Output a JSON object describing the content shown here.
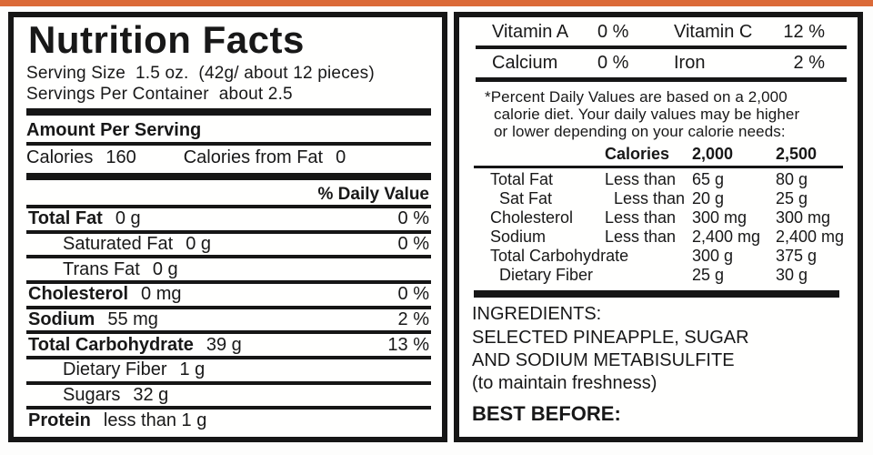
{
  "colors": {
    "accent_orange": "#DB6A38",
    "border_black": "#161616"
  },
  "left": {
    "title": "Nutrition Facts",
    "serving_size": "Serving Size  1.5 oz.  (42g/ about 12 pieces)",
    "servings_per_container": "Servings Per Container  about 2.5",
    "amount_per_serving": "Amount Per Serving",
    "calories": {
      "label": "Calories",
      "value": "160",
      "from_fat_label": "Calories from Fat",
      "from_fat_value": "0"
    },
    "daily_value_header": "% Daily Value",
    "nutrients": [
      {
        "name": "Total Fat",
        "amount": "0 g",
        "dv": "0 %"
      },
      {
        "name": "Saturated Fat",
        "amount": "0 g",
        "dv": "0 %"
      },
      {
        "name": "Trans Fat",
        "amount": "0 g",
        "dv": ""
      },
      {
        "name": "Cholesterol",
        "amount": "0 mg",
        "dv": "0 %"
      },
      {
        "name": "Sodium",
        "amount": "55 mg",
        "dv": "2 %"
      },
      {
        "name": "Total Carbohydrate",
        "amount": "39 g",
        "dv": "13 %"
      },
      {
        "name": "Dietary Fiber",
        "amount": "1 g",
        "dv": ""
      },
      {
        "name": "Sugars",
        "amount": "32 g",
        "dv": ""
      },
      {
        "name": "Protein",
        "amount": "less than 1 g",
        "dv": ""
      }
    ]
  },
  "right": {
    "vitamins": {
      "row1": {
        "name1": "Vitamin A",
        "value1": "0 %",
        "name2": "Vitamin C",
        "value2": "12 %"
      },
      "row2": {
        "name1": "Calcium",
        "value1": "0 %",
        "name2": "Iron",
        "value2": "2 %"
      }
    },
    "footnote_lines": [
      "*Percent Daily Values are based on a 2,000",
      "calorie diet. Your daily values may be higher",
      "or lower depending on your calorie needs:"
    ],
    "dv_table": {
      "header": {
        "calories": "Calories",
        "c2000": "2,000",
        "c2500": "2,500"
      },
      "rows": [
        {
          "name": "Total Fat",
          "qualifier": "Less than",
          "c2000": "65 g",
          "c2500": "80 g"
        },
        {
          "name": "Sat Fat",
          "qualifier": "Less than",
          "c2000": "20 g",
          "c2500": "25 g"
        },
        {
          "name": "Cholesterol",
          "qualifier": "Less than",
          "c2000": "300 mg",
          "c2500": "300 mg"
        },
        {
          "name": "Sodium",
          "qualifier": "Less than",
          "c2000": "2,400 mg",
          "c2500": "2,400 mg"
        },
        {
          "name": "Total Carbohydrate",
          "qualifier": "",
          "c2000": "300 g",
          "c2500": "375 g"
        },
        {
          "name": "Dietary Fiber",
          "qualifier": "",
          "c2000": "25 g",
          "c2500": "30 g"
        }
      ]
    },
    "ingredients": {
      "title": "INGREDIENTS:",
      "lines": [
        "SELECTED PINEAPPLE, SUGAR",
        "AND SODIUM METABISULFITE",
        "(to maintain freshness)"
      ]
    },
    "best_before": "BEST BEFORE:"
  }
}
